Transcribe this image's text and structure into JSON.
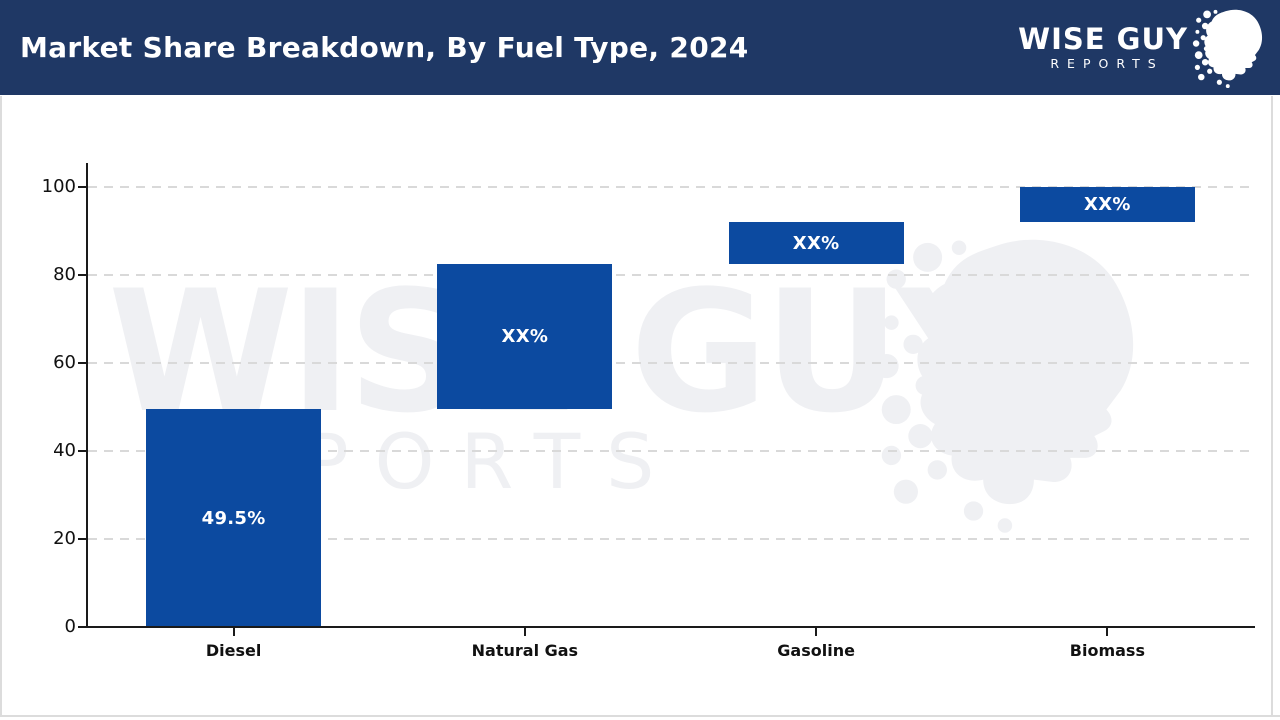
{
  "header": {
    "title": "Market Share Breakdown, By Fuel Type, 2024",
    "logo": {
      "line1": "WISE GUY",
      "line2": "REPORTS",
      "icon": "dot-face-profile-icon"
    }
  },
  "watermark": {
    "line1": "WISE GUY",
    "line2": "REPORTS"
  },
  "colors": {
    "header_bg": "#1f3865",
    "bar": "#0c4aa0",
    "bar_label": "#ffffff",
    "grid": "#d9d9d9",
    "axis": "#1a1a1a",
    "watermark": "#eff0f3"
  },
  "chart_data": {
    "type": "bar",
    "subtype": "waterfall",
    "title": "Market Share Breakdown, By Fuel Type, 2024",
    "categories": [
      "Diesel",
      "Natural Gas",
      "Gasoline",
      "Biomass"
    ],
    "segments": [
      {
        "category": "Diesel",
        "from": 0,
        "to": 49.5,
        "label": "49.5%"
      },
      {
        "category": "Natural Gas",
        "from": 49.5,
        "to": 82.5,
        "label": "XX%"
      },
      {
        "category": "Gasoline",
        "from": 82.5,
        "to": 92,
        "label": "XX%"
      },
      {
        "category": "Biomass",
        "from": 92,
        "to": 100,
        "label": "XX%"
      }
    ],
    "xlabel": "",
    "ylabel": "",
    "ylim": [
      0,
      100
    ],
    "yticks": [
      0,
      20,
      40,
      60,
      80,
      100
    ],
    "grid": "horizontal-dashed",
    "legend": "none"
  }
}
